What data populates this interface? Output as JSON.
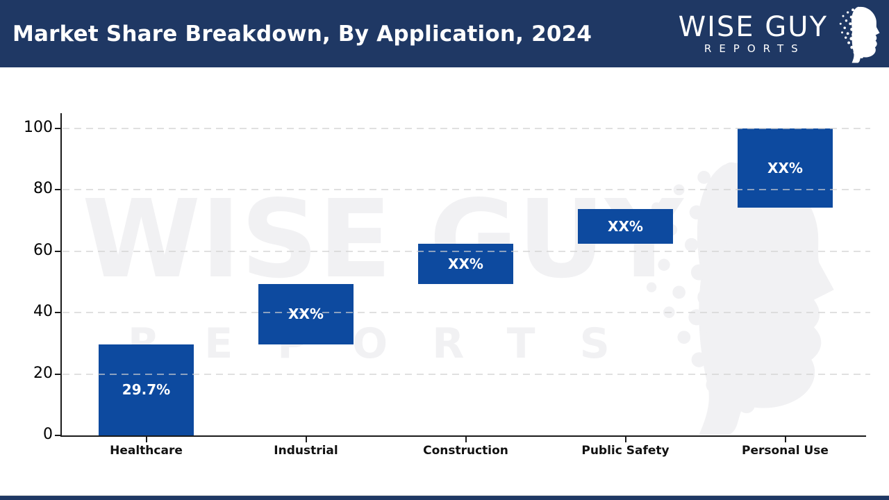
{
  "header": {
    "title": "Market Share Breakdown, By Application, 2024",
    "logo": {
      "name": "WISE GUY",
      "sub": "REPORTS"
    }
  },
  "watermark": {
    "line1": "WISE GUY",
    "line2": "REPORTS"
  },
  "chart_data": {
    "type": "bar",
    "subtype": "waterfall",
    "title": "Market Share Breakdown, By Application, 2024",
    "categories": [
      "Healthcare",
      "Industrial",
      "Construction",
      "Public Safety",
      "Personal Use"
    ],
    "series": [
      {
        "name": "Market Share",
        "segments": [
          {
            "category": "Healthcare",
            "start": 0,
            "end": 29.7,
            "label": "29.7%"
          },
          {
            "category": "Industrial",
            "start": 29.7,
            "end": 49.4,
            "label": "XX%"
          },
          {
            "category": "Construction",
            "start": 49.4,
            "end": 62.5,
            "label": "XX%"
          },
          {
            "category": "Public Safety",
            "start": 62.5,
            "end": 73.8,
            "label": "XX%"
          },
          {
            "category": "Personal Use",
            "start": 74.2,
            "end": 100,
            "label": "XX%"
          }
        ]
      }
    ],
    "xlabel": "",
    "ylabel": "",
    "y_ticks": [
      0,
      20,
      40,
      60,
      80,
      100
    ],
    "ylim": [
      0,
      105
    ],
    "grid": "dashed-horizontal",
    "legend": "none",
    "bar_color": "#0d4a9f",
    "bar_label_color": "#ffffff"
  },
  "colors": {
    "header_bg": "#1f3864",
    "axis": "#1a1a1a",
    "grid": "#d0d0d0",
    "watermark": "#f1f1f3"
  }
}
